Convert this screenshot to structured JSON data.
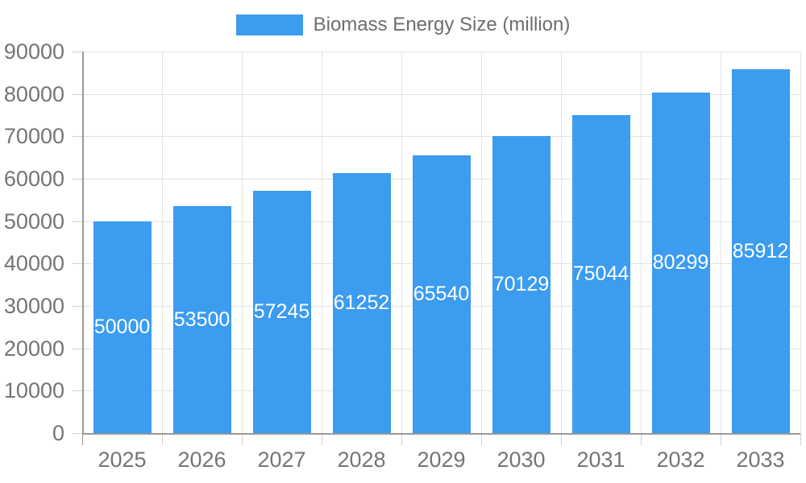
{
  "chart_data": {
    "type": "bar",
    "title": "Biomass Energy Size (million)",
    "categories": [
      "2025",
      "2026",
      "2027",
      "2028",
      "2029",
      "2030",
      "2031",
      "2032",
      "2033"
    ],
    "values": [
      50000,
      53500,
      57245,
      61252,
      65540,
      70129,
      75044,
      80299,
      85912
    ],
    "value_labels": [
      "50000",
      "53500",
      "57245",
      "61252",
      "65540",
      "70129",
      "75044",
      "80299",
      "85912"
    ],
    "yticks": [
      0,
      10000,
      20000,
      30000,
      40000,
      50000,
      60000,
      70000,
      80000,
      90000
    ],
    "ytick_labels": [
      "0",
      "10000",
      "20000",
      "30000",
      "40000",
      "50000",
      "60000",
      "70000",
      "80000",
      "90000"
    ],
    "ylim": [
      0,
      90000
    ],
    "xlabel": "",
    "ylabel": "",
    "grid": true,
    "legend_position": "top",
    "colors": {
      "bar": "#3B9CF0",
      "value_label": "#FFFFFF",
      "axis_label": "#757575",
      "legend_text": "#6E6E6E",
      "gridline": "#E3E3E3",
      "tick": "#CFCFCF",
      "axis_line": "#999999",
      "background": "#FFFFFF"
    }
  }
}
